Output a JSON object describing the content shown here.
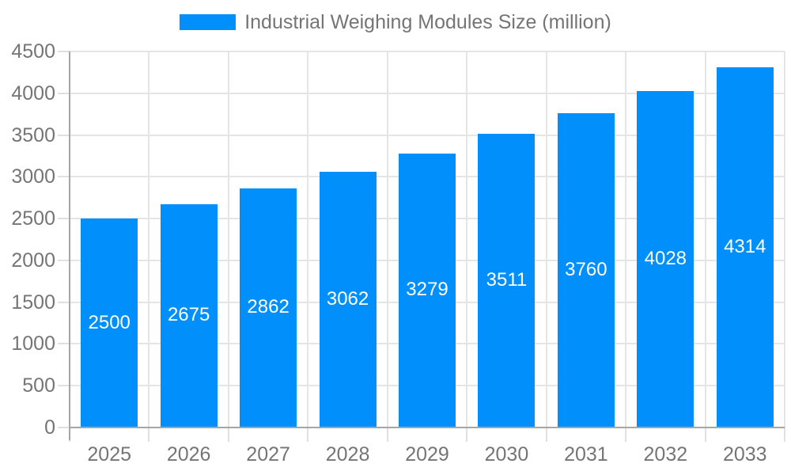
{
  "chart_data": {
    "type": "bar",
    "title": "Industrial Weighing Modules Size (million)",
    "legend": {
      "position": "top",
      "entries": [
        "Industrial Weighing Modules Size (million)"
      ]
    },
    "categories": [
      "2025",
      "2026",
      "2027",
      "2028",
      "2029",
      "2030",
      "2031",
      "2032",
      "2033"
    ],
    "values": [
      2500,
      2675,
      2862,
      3062,
      3279,
      3511,
      3760,
      4028,
      4314
    ],
    "xlabel": "",
    "ylabel": "",
    "ylim": [
      0,
      4500
    ],
    "ytick_step": 500,
    "ytick_labels": [
      "0",
      "500",
      "1000",
      "1500",
      "2000",
      "2500",
      "3000",
      "3500",
      "4000",
      "4500"
    ],
    "grid": {
      "horizontal": true,
      "vertical": true
    },
    "data_labels": {
      "enabled": true,
      "position": "center"
    },
    "colors": {
      "bar": "#008FFB",
      "grid": "#e5e5e5",
      "tick": "#e0e0e0",
      "axis": "#a6a6a6",
      "label_text": "#757575",
      "data_label_text": "#ffffff",
      "background": "#ffffff"
    }
  }
}
